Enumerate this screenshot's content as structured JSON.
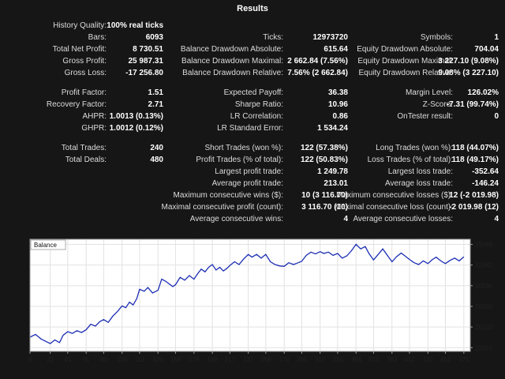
{
  "title": "Results",
  "stats": {
    "groups": [
      {
        "rows": [
          {
            "cells": [
              "History Quality:",
              "100% real ticks",
              "",
              "",
              "",
              ""
            ]
          },
          {
            "cells": [
              "Bars:",
              "6093",
              "Ticks:",
              "12973720",
              "Symbols:",
              "1"
            ]
          },
          {
            "cells": [
              "Total Net Profit:",
              "8 730.51",
              "Balance Drawdown Absolute:",
              "615.64",
              "Equity Drawdown Absolute:",
              "704.04"
            ]
          },
          {
            "cells": [
              "Gross Profit:",
              "25 987.31",
              "Balance Drawdown Maximal:",
              "2 662.84 (7.56%)",
              "Equity Drawdown Maximal:",
              "3 227.10 (9.08%)"
            ]
          },
          {
            "cells": [
              "Gross Loss:",
              "-17 256.80",
              "Balance Drawdown Relative:",
              "7.56% (2 662.84)",
              "Equity Drawdown Relative:",
              "9.08% (3 227.10)"
            ]
          }
        ]
      },
      {
        "rows": [
          {
            "cells": [
              "Profit Factor:",
              "1.51",
              "Expected Payoff:",
              "36.38",
              "Margin Level:",
              "126.02%"
            ]
          },
          {
            "cells": [
              "Recovery Factor:",
              "2.71",
              "Sharpe Ratio:",
              "10.96",
              "Z-Score:",
              "-7.31 (99.74%)"
            ]
          },
          {
            "cells": [
              "AHPR:",
              "1.0013 (0.13%)",
              "LR Correlation:",
              "0.86",
              "OnTester result:",
              "0"
            ]
          },
          {
            "cells": [
              "GHPR:",
              "1.0012 (0.12%)",
              "LR Standard Error:",
              "1 534.24",
              "",
              ""
            ]
          }
        ]
      },
      {
        "rows": [
          {
            "cells": [
              "Total Trades:",
              "240",
              "Short Trades (won %):",
              "122 (57.38%)",
              "Long Trades (won %):",
              "118 (44.07%)"
            ]
          },
          {
            "cells": [
              "Total Deals:",
              "480",
              "Profit Trades (% of total):",
              "122 (50.83%)",
              "Loss Trades (% of total):",
              "118 (49.17%)"
            ]
          },
          {
            "cells": [
              "",
              "",
              "Largest profit trade:",
              "1 249.78",
              "Largest loss trade:",
              "-352.64"
            ]
          },
          {
            "cells": [
              "",
              "",
              "Average profit trade:",
              "213.01",
              "Average loss trade:",
              "-146.24"
            ]
          },
          {
            "cells": [
              "",
              "",
              "Maximum consecutive wins ($):",
              "10 (3 116.70)",
              "Maximum consecutive losses ($):",
              "12 (-2 019.98)"
            ]
          },
          {
            "cells": [
              "",
              "",
              "Maximal consecutive profit (count):",
              "3 116.70 (10)",
              "Maximal consecutive loss (count):",
              "-2 019.98 (12)"
            ]
          },
          {
            "cells": [
              "",
              "",
              "Average consecutive wins:",
              "4",
              "Average consecutive losses:",
              "4"
            ]
          }
        ]
      }
    ]
  },
  "chart_data": {
    "type": "line",
    "title": "Balance",
    "legend_label": "Balance",
    "xlabel": "",
    "ylabel": "",
    "grid": true,
    "background": "#ffffff",
    "grid_color": "#e2e2e2",
    "border_color": "#9a9a9a",
    "line_color": "#1c2eb3",
    "axis_text_color": "#222222",
    "xlim": [
      0,
      478
    ],
    "ylim": [
      23450,
      35650
    ],
    "x_ticks": [
      0,
      22,
      41,
      61,
      80,
      100,
      119,
      139,
      158,
      178,
      198,
      217,
      237,
      256,
      276,
      295,
      315,
      334,
      354,
      373,
      393,
      412,
      432,
      451,
      471
    ],
    "y_ticks": [
      35088,
      32842,
      30596,
      28350,
      26103,
      23857
    ],
    "series": [
      {
        "name": "Balance",
        "x": [
          0,
          6,
          12,
          18,
          22,
          27,
          32,
          36,
          41,
          46,
          51,
          56,
          61,
          66,
          71,
          76,
          80,
          85,
          90,
          95,
          100,
          104,
          108,
          112,
          116,
          119,
          124,
          128,
          133,
          139,
          143,
          147,
          151,
          155,
          158,
          163,
          168,
          173,
          178,
          182,
          186,
          190,
          194,
          198,
          202,
          206,
          210,
          214,
          217,
          222,
          227,
          232,
          237,
          241,
          246,
          251,
          256,
          261,
          266,
          271,
          276,
          281,
          286,
          290,
          295,
          300,
          305,
          310,
          315,
          319,
          324,
          329,
          334,
          339,
          344,
          349,
          354,
          359,
          364,
          368,
          373,
          378,
          383,
          388,
          393,
          398,
          403,
          407,
          412,
          417,
          422,
          427,
          432,
          437,
          441,
          446,
          451,
          456,
          461,
          466,
          471
        ],
        "y": [
          25000,
          25300,
          24800,
          24500,
          24300,
          24700,
          24400,
          25200,
          25600,
          25400,
          25700,
          25500,
          25800,
          26400,
          26200,
          26700,
          26900,
          26600,
          27300,
          27800,
          28400,
          28200,
          28800,
          28500,
          29200,
          30200,
          30000,
          30400,
          29800,
          30100,
          31300,
          31100,
          30800,
          30500,
          30700,
          31500,
          31200,
          31700,
          31300,
          31900,
          32400,
          32100,
          32600,
          32900,
          32300,
          32600,
          32200,
          32500,
          32800,
          33200,
          32900,
          33500,
          34000,
          33700,
          34000,
          33600,
          34000,
          33200,
          32900,
          32750,
          32700,
          33100,
          32900,
          33050,
          33250,
          33900,
          34250,
          34050,
          34300,
          34100,
          34250,
          33900,
          34100,
          33600,
          33850,
          34400,
          35088,
          34600,
          34850,
          34100,
          33400,
          34000,
          34600,
          33900,
          33200,
          33750,
          34150,
          33850,
          33450,
          33100,
          32900,
          33300,
          33000,
          33450,
          33700,
          33300,
          33000,
          33350,
          33600,
          33300,
          33730
        ]
      }
    ]
  }
}
